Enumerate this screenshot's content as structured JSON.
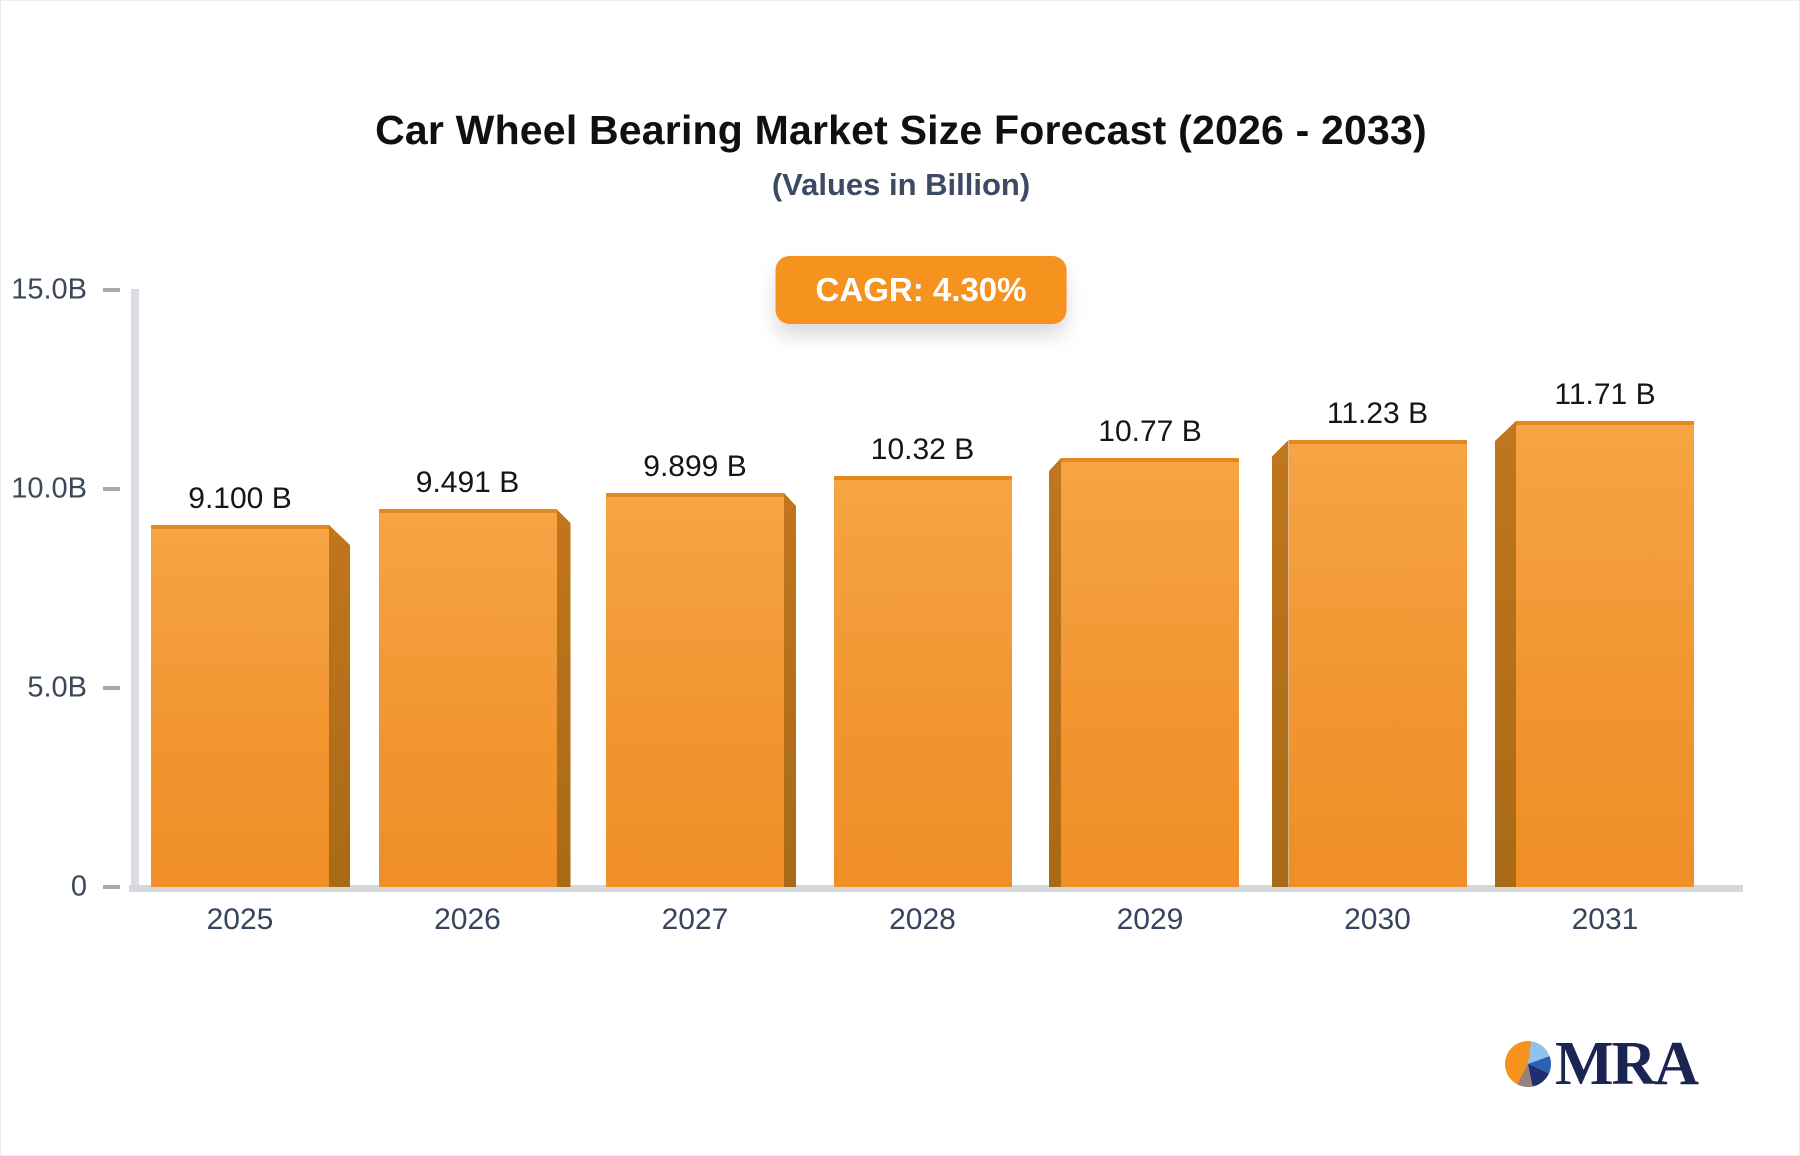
{
  "header": {
    "title": "Car Wheel Bearing Market Size Forecast (2026 - 2033)",
    "subtitle": "(Values in Billion)",
    "cagr_badge": "CAGR: 4.30%"
  },
  "chart_data": {
    "type": "bar",
    "title": "Car Wheel Bearing Market Size Forecast (2026 - 2033)",
    "subtitle": "(Values in Billion)",
    "categories": [
      "2025",
      "2026",
      "2027",
      "2028",
      "2029",
      "2030",
      "2031"
    ],
    "values": [
      9.1,
      9.491,
      9.899,
      10.32,
      10.77,
      11.23,
      11.71
    ],
    "value_labels": [
      "9.100 B",
      "9.491 B",
      "9.899 B",
      "10.32 B",
      "10.77 B",
      "11.23 B",
      "11.71 B"
    ],
    "unit": "Billion",
    "cagr": "4.30%",
    "xlabel": "",
    "ylabel": "",
    "y_ticks": [
      {
        "label": "15.0B",
        "value": 15
      },
      {
        "label": "10.0B",
        "value": 10
      },
      {
        "label": "5.0B",
        "value": 5
      },
      {
        "label": "0",
        "value": 0
      }
    ],
    "ylim": [
      0,
      15
    ],
    "grid": false,
    "legend": null,
    "bar_style": "3d-orange"
  },
  "colors": {
    "accent_orange": "#f6921e",
    "bar_face_top": "#f6a445",
    "bar_face_bottom": "#f08e28",
    "bar_side": "#b06f1a",
    "axis_gray": "#d6d9dd",
    "label_slate": "#3c4858",
    "subtitle_slate": "#3c4a63"
  },
  "logo": {
    "text": "MRA",
    "icon": "pie-chart"
  }
}
